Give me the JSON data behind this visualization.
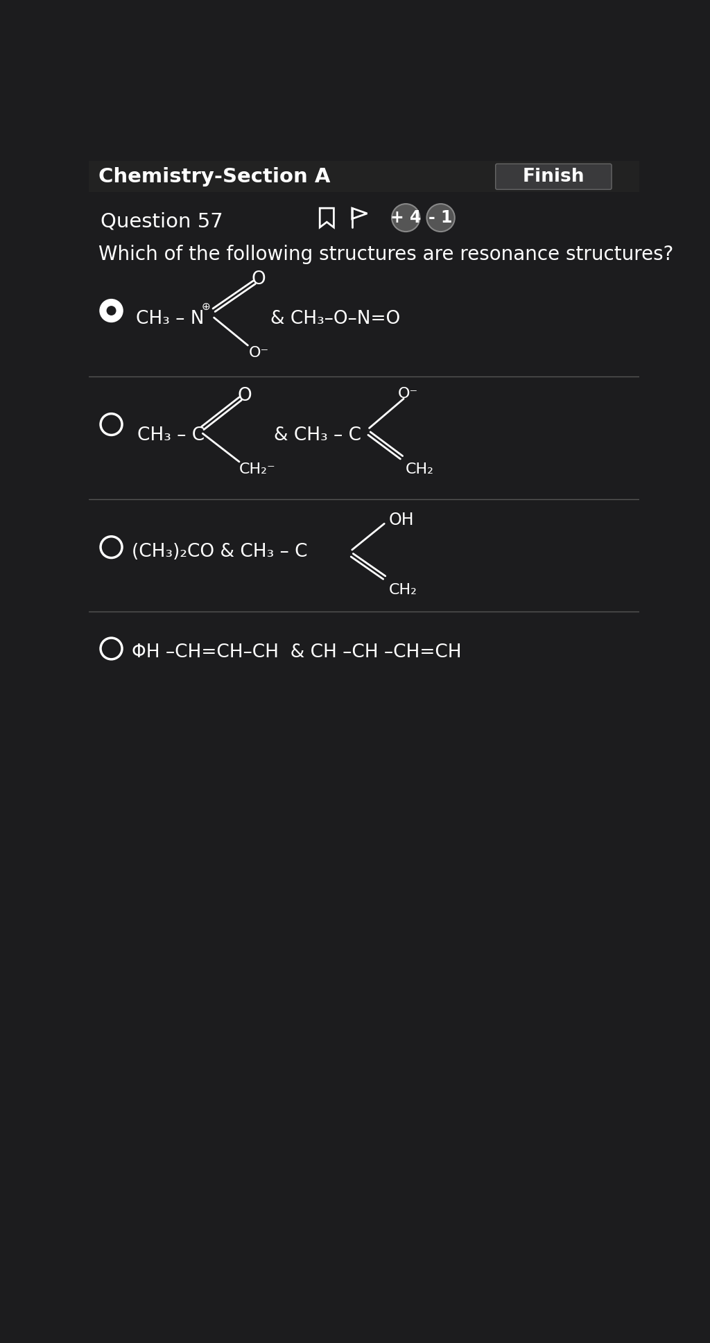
{
  "bg_color": "#1c1c1e",
  "header_bg": "#222222",
  "text_color": "#ffffff",
  "header_text": "Chemistry-Section A",
  "finish_text": "Finish",
  "question_num": "Question 57",
  "plus4_text": "+ 4",
  "minus1_text": "- 1",
  "question_text": "Which of the following structures are resonance structures?",
  "option_a_selected": true,
  "option_b_selected": false,
  "option_c_selected": false,
  "option_d_selected": false,
  "divider_color": "#555555",
  "circle_color": "#ffffff",
  "selected_fill": "#ffffff",
  "button_bg": "#555555",
  "finish_bg": "#3a3a3c",
  "option_a_text2": "& CH₃–O–N=O",
  "option_d_text": "ΦH –CH=CH–CH  & CH –CH –CH=CH"
}
